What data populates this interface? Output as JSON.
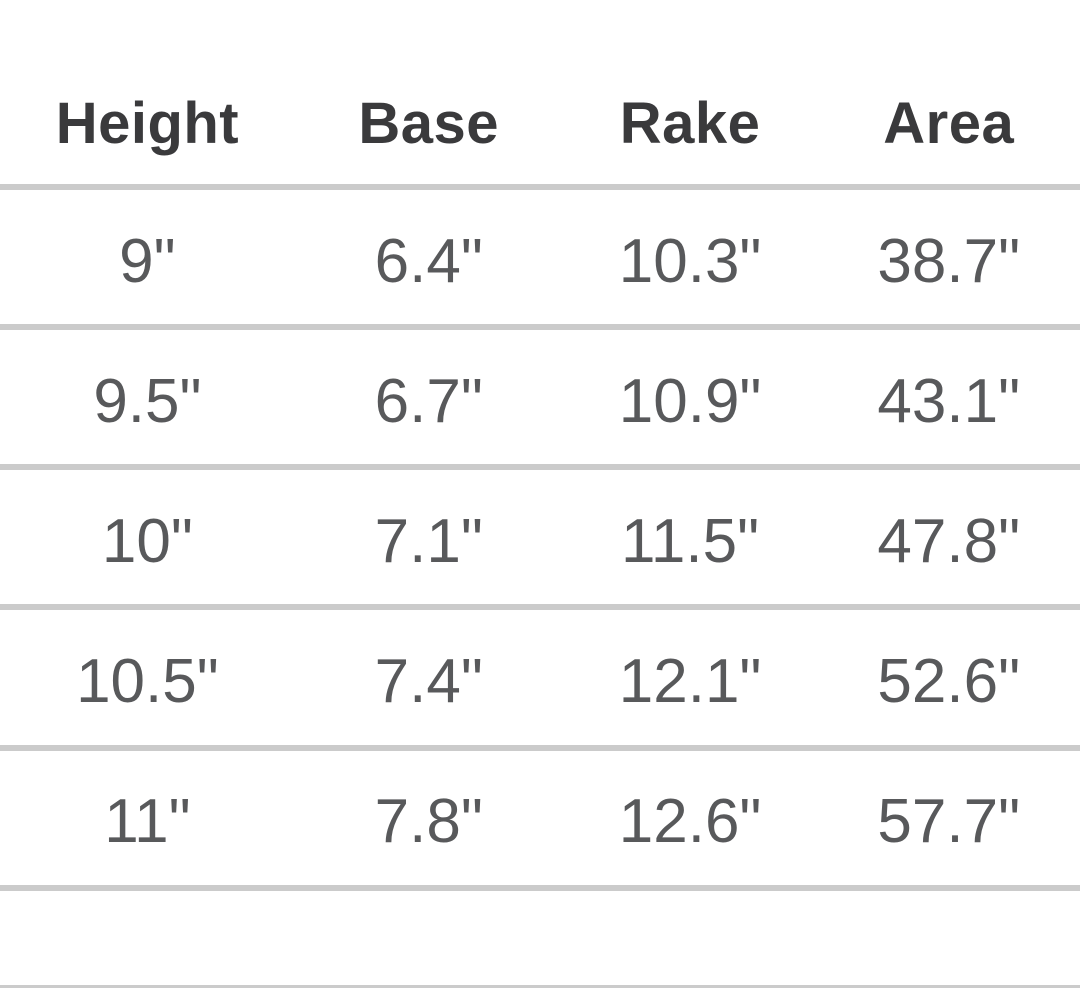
{
  "table": {
    "columns": [
      "Height",
      "Base",
      "Rake",
      "Area"
    ],
    "rows": [
      [
        "9\"",
        "6.4\"",
        "10.3\"",
        "38.7\""
      ],
      [
        "9.5\"",
        "6.7\"",
        "10.9\"",
        "43.1\""
      ],
      [
        "10\"",
        "7.1\"",
        "11.5\"",
        "47.8\""
      ],
      [
        "10.5\"",
        "7.4\"",
        "12.1\"",
        "52.6\""
      ],
      [
        "11\"",
        "7.8\"",
        "12.6\"",
        "57.7\""
      ]
    ]
  },
  "colors": {
    "divider": "#cbcbcb",
    "header_text": "#3a3a3c",
    "body_text": "#58595b",
    "background": "#ffffff"
  },
  "chart_data": {
    "type": "table",
    "title": "",
    "columns": [
      "Height",
      "Base",
      "Rake",
      "Area"
    ],
    "rows": [
      [
        "9\"",
        "6.4\"",
        "10.3\"",
        "38.7\""
      ],
      [
        "9.5\"",
        "6.7\"",
        "10.9\"",
        "43.1\""
      ],
      [
        "10\"",
        "7.1\"",
        "11.5\"",
        "47.8\""
      ],
      [
        "10.5\"",
        "7.4\"",
        "12.1\"",
        "52.6\""
      ],
      [
        "11\"",
        "7.8\"",
        "12.6\"",
        "57.7\""
      ]
    ],
    "numeric_rows": [
      [
        9,
        6.4,
        10.3,
        38.7
      ],
      [
        9.5,
        6.7,
        10.9,
        43.1
      ],
      [
        10,
        7.1,
        11.5,
        47.8
      ],
      [
        10.5,
        7.4,
        12.1,
        52.6
      ],
      [
        11,
        7.8,
        12.6,
        57.7
      ]
    ]
  }
}
